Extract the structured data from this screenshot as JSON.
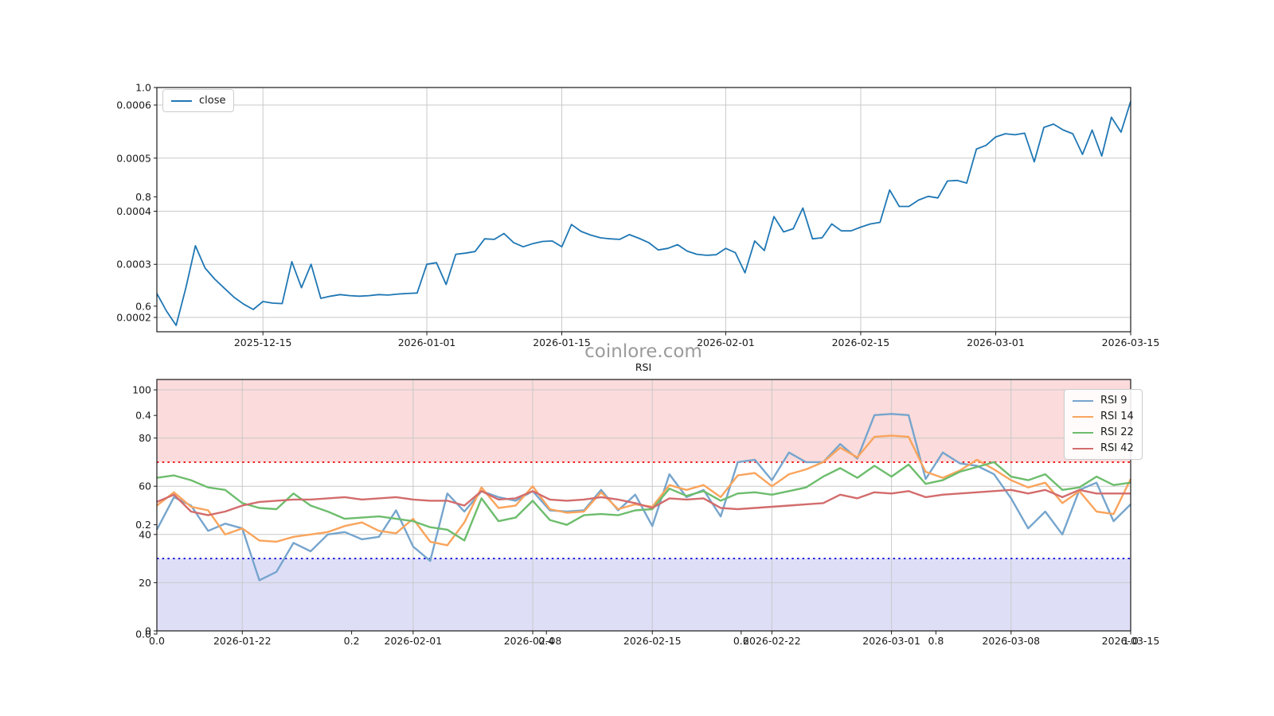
{
  "watermark": {
    "text": "coinlore.com",
    "color": "#9b9b9b"
  },
  "overlay_axis": {
    "x_tick_labels": [
      "0.0",
      "0.2",
      "0.4",
      "0.6",
      "0.8",
      "1.0"
    ],
    "y_tick_labels": [
      "1.0",
      "0.8",
      "0.6",
      "0.4",
      "0.2",
      "0.0"
    ]
  },
  "chart_data": [
    {
      "type": "line",
      "title": "",
      "x_start": "2025-12-04",
      "x_end": "2026-03-15",
      "x_interval": "daily",
      "grid": true,
      "legend_position": "upper left",
      "x_tick_labels": [
        "2025-12-15",
        "2026-01-01",
        "2026-01-15",
        "2026-02-01",
        "2026-02-15",
        "2026-03-01",
        "2026-03-15"
      ],
      "x_tick_days": [
        11,
        28,
        42,
        59,
        73,
        87,
        101
      ],
      "y_tick_labels": [
        "0.0002",
        "0.0003",
        "0.0004",
        "0.0005",
        "0.0006"
      ],
      "y_tick_values": [
        0.0002,
        0.0003,
        0.0004,
        0.0005,
        0.0006
      ],
      "ylim": [
        0.000173,
        0.000633
      ],
      "series": [
        {
          "name": "close",
          "color": "#1f77b4",
          "values": [
            0.000245,
            0.000212,
            0.000185,
            0.000255,
            0.000335,
            0.000293,
            0.000272,
            0.000255,
            0.000238,
            0.000225,
            0.000215,
            0.00023,
            0.000227,
            0.000226,
            0.000305,
            0.000256,
            0.0003,
            0.000236,
            0.00024,
            0.000243,
            0.000241,
            0.00024,
            0.000241,
            0.000243,
            0.000242,
            0.000244,
            0.000245,
            0.000246,
            0.0003,
            0.000303,
            0.000262,
            0.000319,
            0.000321,
            0.000324,
            0.000348,
            0.000347,
            0.000358,
            0.000341,
            0.000333,
            0.000339,
            0.000343,
            0.000344,
            0.000333,
            0.000375,
            0.000362,
            0.000355,
            0.00035,
            0.000348,
            0.000347,
            0.000356,
            0.000349,
            0.000341,
            0.000327,
            0.00033,
            0.000337,
            0.000325,
            0.000319,
            0.000317,
            0.000318,
            0.00033,
            0.000322,
            0.000284,
            0.000344,
            0.000326,
            0.00039,
            0.000361,
            0.000367,
            0.000406,
            0.000348,
            0.00035,
            0.000376,
            0.000363,
            0.000363,
            0.00037,
            0.000376,
            0.000379,
            0.00044,
            0.000409,
            0.000409,
            0.000421,
            0.000428,
            0.000425,
            0.000457,
            0.000458,
            0.000453,
            0.000517,
            0.000524,
            0.00054,
            0.000546,
            0.000544,
            0.000547,
            0.000493,
            0.000558,
            0.000564,
            0.000553,
            0.000546,
            0.000507,
            0.000553,
            0.000504,
            0.000577,
            0.000549,
            0.000607
          ]
        }
      ]
    },
    {
      "type": "line",
      "title": "RSI",
      "x_start": "2026-01-17",
      "x_end": "2026-03-15",
      "x_interval": "daily",
      "grid": true,
      "legend_position": "upper right",
      "x_tick_labels": [
        "2026-01-22",
        "2026-02-01",
        "2026-02-08",
        "2026-02-15",
        "2026-02-22",
        "2026-03-01",
        "2026-03-08",
        "2026-03-15"
      ],
      "x_tick_days": [
        5,
        15,
        22,
        29,
        36,
        43,
        50,
        57
      ],
      "y_tick_labels": [
        "0",
        "20",
        "40",
        "60",
        "80",
        "100"
      ],
      "y_tick_values": [
        0,
        20,
        40,
        60,
        80,
        100
      ],
      "ylim": [
        0,
        104.3
      ],
      "bands": [
        {
          "from": 70,
          "to": 104.3,
          "color": "#fbdbdb",
          "meaning": "overbought"
        },
        {
          "from": 0,
          "to": 30,
          "color": "#dedef7",
          "meaning": "oversold"
        }
      ],
      "hlines": [
        {
          "value": 70,
          "color": "#ee1111",
          "style": "dotted"
        },
        {
          "value": 30,
          "color": "#1515d6",
          "style": "dotted"
        }
      ],
      "series": [
        {
          "name": "RSI 9",
          "color": "#76a5cd",
          "values": [
            42,
            55.5,
            52,
            41.5,
            44.5,
            42.5,
            21,
            24.5,
            36.5,
            33,
            40,
            41,
            38,
            39,
            50,
            35,
            29,
            57,
            49.5,
            58,
            55.5,
            54,
            58,
            50,
            49.5,
            50,
            58.5,
            50,
            56.5,
            43.5,
            65,
            55.5,
            58.5,
            47.5,
            70,
            71,
            62.5,
            74,
            70,
            70,
            77.5,
            71.5,
            89.5,
            90,
            89.5,
            63,
            74,
            69.5,
            68.5,
            65,
            55,
            42.5,
            49.5,
            40,
            58.5,
            61.5,
            45.5,
            52.5
          ]
        },
        {
          "name": "RSI 14",
          "color": "#f9a45c",
          "values": [
            52,
            57.5,
            51.5,
            50,
            40,
            42.5,
            37.5,
            37,
            39,
            40,
            41,
            43.5,
            45,
            41.5,
            40.5,
            46.5,
            37,
            35.5,
            45,
            59.5,
            51,
            52,
            60,
            50.5,
            49,
            49.5,
            57.5,
            50.5,
            52.5,
            51.5,
            60.5,
            58.5,
            60.5,
            55.5,
            64.5,
            65.5,
            60,
            65,
            67,
            70,
            76,
            72,
            80.5,
            81,
            80.5,
            66,
            63.5,
            66.5,
            71,
            67,
            62.5,
            59.5,
            61.5,
            53,
            58,
            49.5,
            48.5,
            63
          ]
        },
        {
          "name": "RSI 22",
          "color": "#6dbd6d",
          "values": [
            63.5,
            64.5,
            62.5,
            59.5,
            58.5,
            53,
            51,
            50.5,
            57,
            52,
            49.5,
            46.5,
            47,
            47.5,
            46.5,
            45.5,
            43,
            42,
            37.5,
            55,
            45.5,
            47,
            54,
            46,
            44,
            48,
            48.5,
            48,
            50,
            50.5,
            59,
            56,
            58,
            54,
            57,
            57.5,
            56.5,
            58,
            59.5,
            64,
            67.5,
            63.5,
            68.5,
            64,
            69,
            61,
            62.5,
            66,
            68,
            70,
            64,
            62.5,
            65,
            58.5,
            59.5,
            64,
            60.5,
            61.5
          ]
        },
        {
          "name": "RSI 42",
          "color": "#d36c6c",
          "values": [
            53.5,
            56.5,
            49.5,
            48,
            49.5,
            52,
            53.5,
            54,
            54.5,
            54.5,
            55,
            55.5,
            54.5,
            55,
            55.5,
            54.5,
            54,
            54,
            52,
            58,
            54.5,
            55,
            58,
            54.5,
            54,
            54.5,
            55.5,
            54.5,
            53,
            51,
            55,
            54.5,
            55,
            51,
            50.5,
            51,
            51.5,
            52,
            52.5,
            53,
            56.5,
            55,
            57.5,
            57,
            58,
            55.5,
            56.5,
            57,
            57.5,
            58,
            58.5,
            57,
            58.5,
            55.5,
            58.5,
            57,
            57,
            57
          ]
        }
      ]
    }
  ]
}
